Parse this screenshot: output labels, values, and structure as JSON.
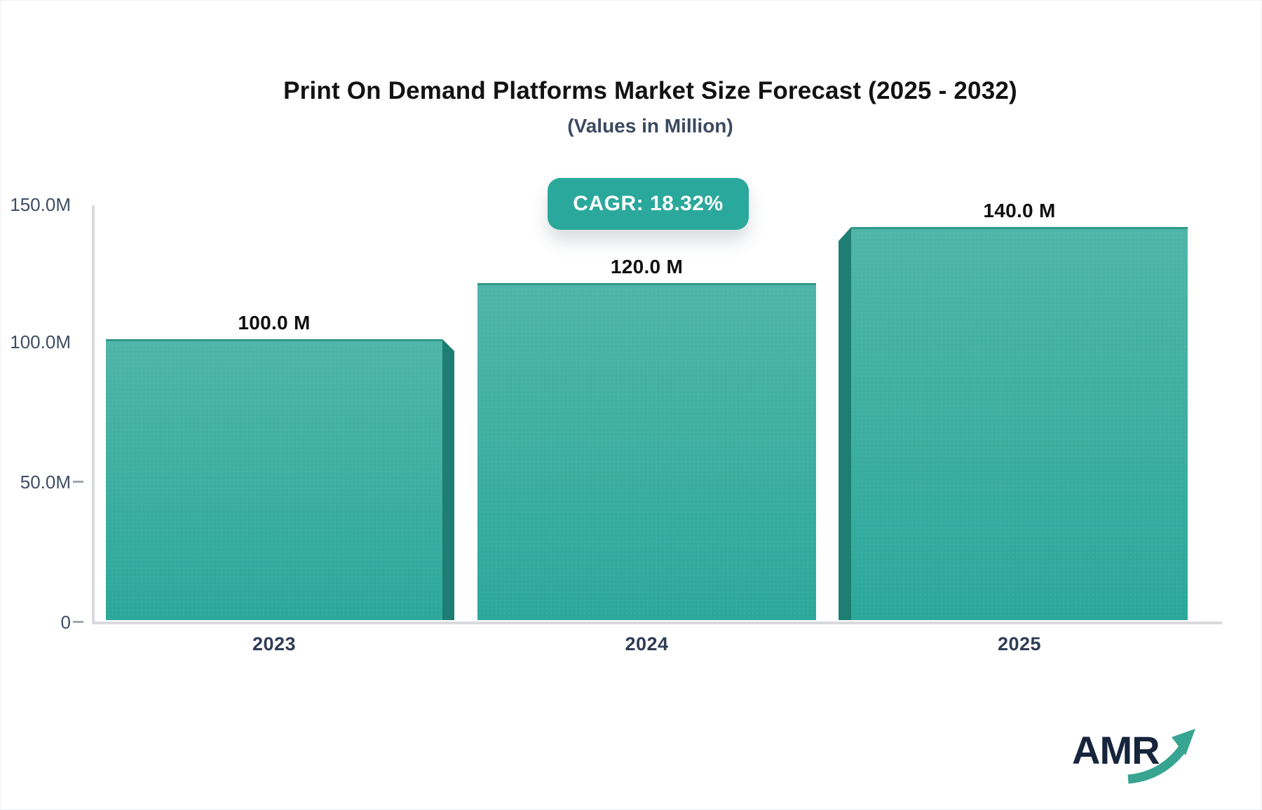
{
  "header": {
    "title": "Print On Demand Platforms Market Size Forecast (2025 - 2032)",
    "subtitle": "(Values in Million)"
  },
  "cagr_badge": {
    "label": "CAGR: 18.32%"
  },
  "chart_data": {
    "type": "bar",
    "title": "Print On Demand Platforms Market Size Forecast (2025 - 2032)",
    "subtitle": "(Values in Million)",
    "categories": [
      "2023",
      "2024",
      "2025"
    ],
    "values": [
      100.0,
      120.0,
      140.0
    ],
    "value_unit": "M",
    "bar_value_labels": [
      "100.0 M",
      "120.0 M",
      "140.0 M"
    ],
    "cagr_label": "CAGR: 18.32%",
    "ylim": [
      0,
      150
    ],
    "y_axis": {
      "ticks": [
        {
          "label": "150.0M",
          "value": 150
        },
        {
          "label": "100.0M",
          "value": 100
        },
        {
          "label": "50.0M",
          "value": 50
        },
        {
          "label": "0",
          "value": 0
        }
      ]
    },
    "grid": false,
    "legend": false,
    "bar_style": {
      "face_top_color": "#4FB5A9",
      "face_bottom_color": "#2BA89A",
      "side_3d_color": "#1E7E73",
      "top_edge_color": "#2B968B"
    }
  },
  "logo": {
    "text": "AMR",
    "arrow": "growth-arrow-icon"
  },
  "colors": {
    "accent_teal": "#2BA89C",
    "axis_line": "#D9DADE",
    "tick_mark": "#9FA5AC",
    "y_label": "#3F4D63",
    "x_label": "#2F3C55",
    "value_label": "#101010",
    "title": "#121212",
    "subtitle": "#3B4960",
    "logo_navy": "#16243C",
    "logo_arrow_teal": "#38A492",
    "background": "#FFFFFF"
  }
}
